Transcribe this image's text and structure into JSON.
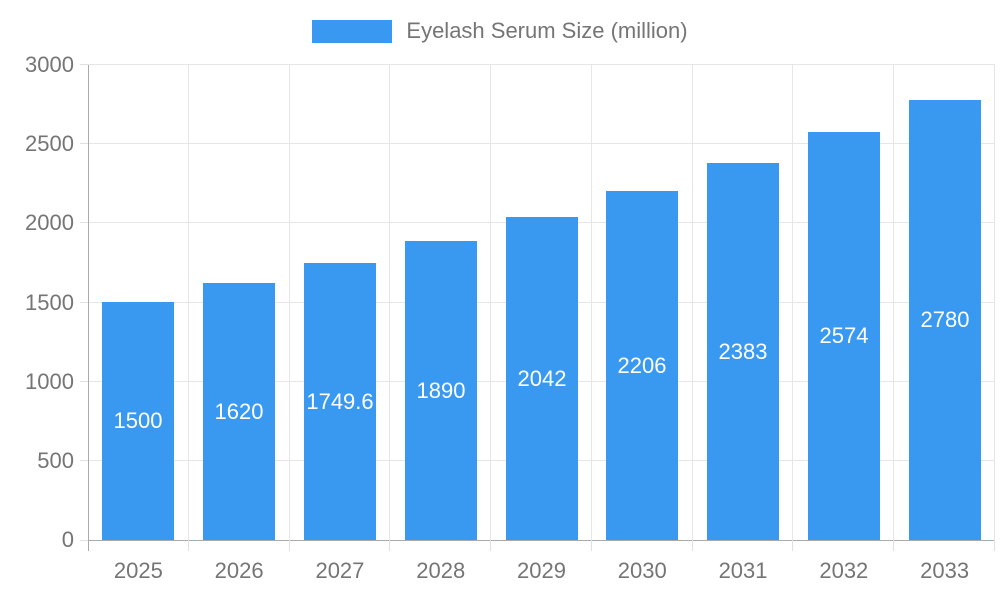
{
  "legend": {
    "label": "Eyelash Serum Size (million)"
  },
  "colors": {
    "bar": "#3999f0",
    "grid": "#e6e6e6",
    "axis": "#aaaaaa",
    "tick": "#e0e0e0",
    "axis_label": "#757575",
    "value_label": "#ffffff",
    "background": "#ffffff"
  },
  "chart_data": {
    "type": "bar",
    "title": "",
    "categories": [
      "2025",
      "2026",
      "2027",
      "2028",
      "2029",
      "2030",
      "2031",
      "2032",
      "2033"
    ],
    "values": [
      1500,
      1620,
      1749.6,
      1890,
      2042,
      2206,
      2383,
      2574,
      2780
    ],
    "value_labels": [
      "1500",
      "1620",
      "1749.6",
      "1890",
      "2042",
      "2206",
      "2383",
      "2574",
      "2780"
    ],
    "series": [
      {
        "name": "Eyelash Serum Size (million)",
        "values": [
          1500,
          1620,
          1749.6,
          1890,
          2042,
          2206,
          2383,
          2574,
          2780
        ]
      }
    ],
    "xlabel": "",
    "ylabel": "",
    "ylim": [
      0,
      3000
    ],
    "yticks": [
      0,
      500,
      1000,
      1500,
      2000,
      2500,
      3000
    ],
    "grid": true,
    "legend_position": "top-center",
    "value_label_position": "inside-center"
  }
}
